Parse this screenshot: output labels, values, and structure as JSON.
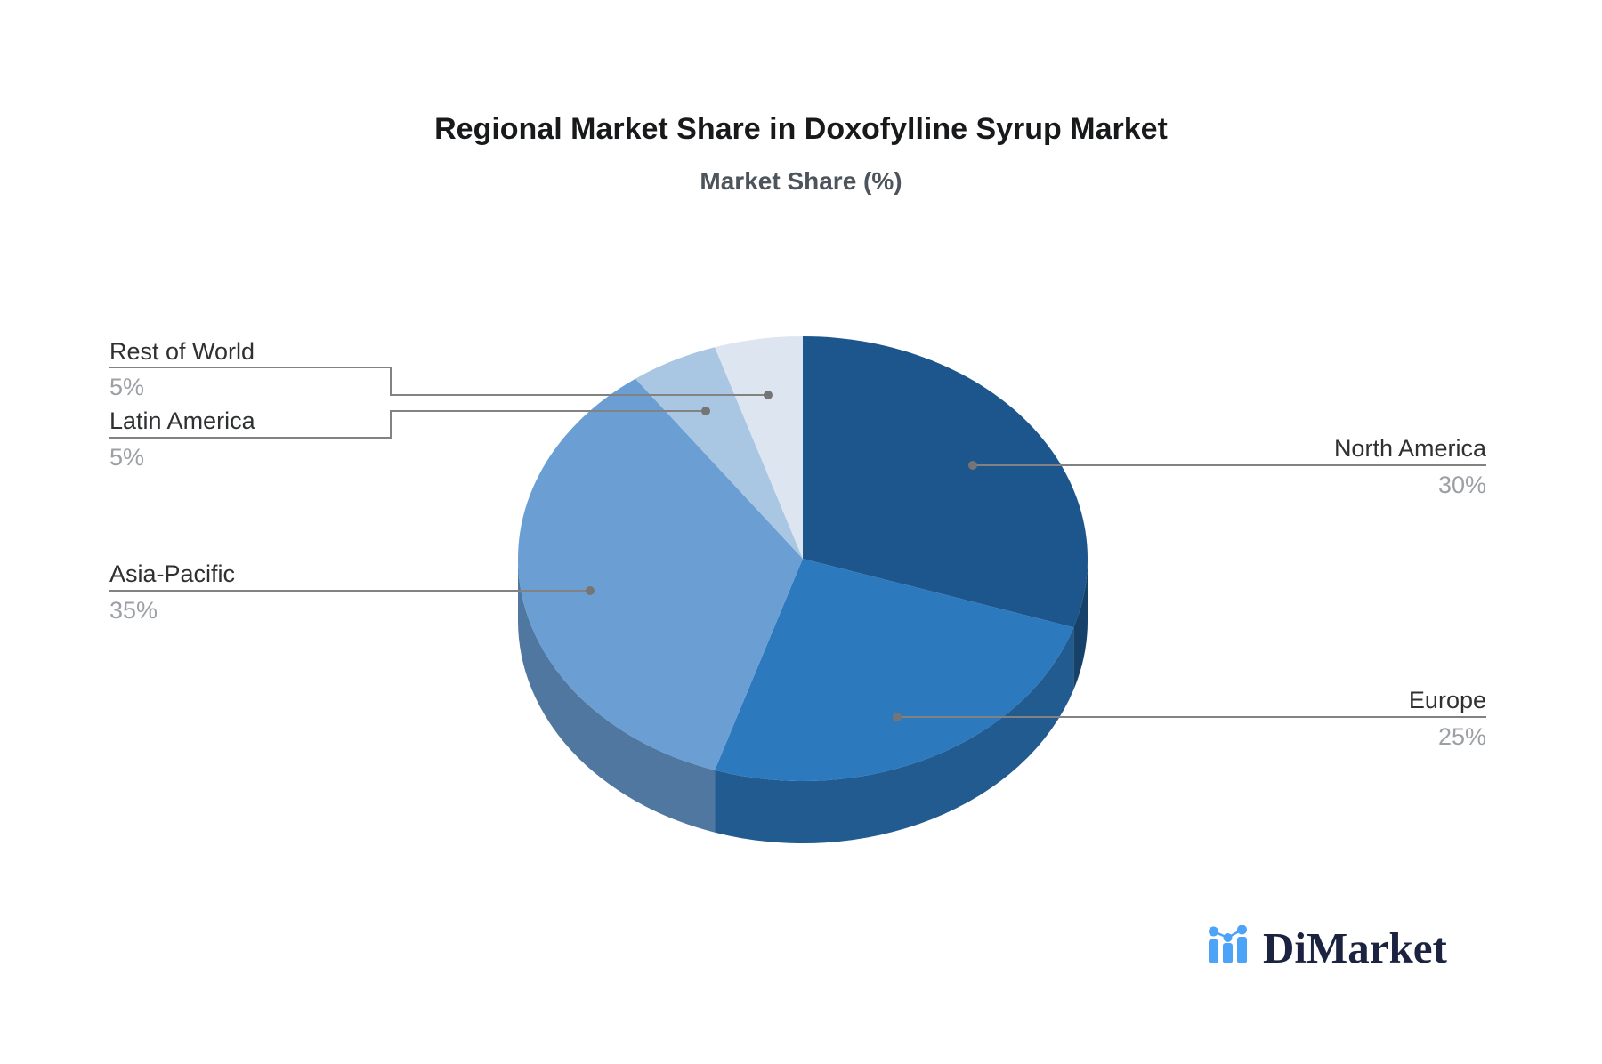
{
  "title": "Regional Market Share in Doxofylline Syrup Market",
  "subtitle": "Market Share (%)",
  "logo": {
    "text": "DiMarket",
    "icon_color": "#4da3f7",
    "text_color": "#1b2340"
  },
  "chart_data": {
    "type": "pie",
    "style": "3d",
    "title": "Regional Market Share in Doxofylline Syrup Market",
    "subtitle": "Market Share (%)",
    "unit": "%",
    "start_angle_deg": 0,
    "direction": "clockwise",
    "slices": [
      {
        "label": "North America",
        "value": 30,
        "display": "30%",
        "color": "#1d568c",
        "label_side": "right"
      },
      {
        "label": "Europe",
        "value": 25,
        "display": "25%",
        "color": "#2d79be",
        "label_side": "right"
      },
      {
        "label": "Asia-Pacific",
        "value": 35,
        "display": "35%",
        "color": "#6b9fd4",
        "label_side": "left"
      },
      {
        "label": "Latin America",
        "value": 5,
        "display": "5%",
        "color": "#a9c6e2",
        "label_side": "left"
      },
      {
        "label": "Rest of World",
        "value": 5,
        "display": "5%",
        "color": "#dce5f0",
        "label_side": "left"
      }
    ],
    "leader_line_color": "#828282",
    "leader_dot_color": "#757575"
  }
}
